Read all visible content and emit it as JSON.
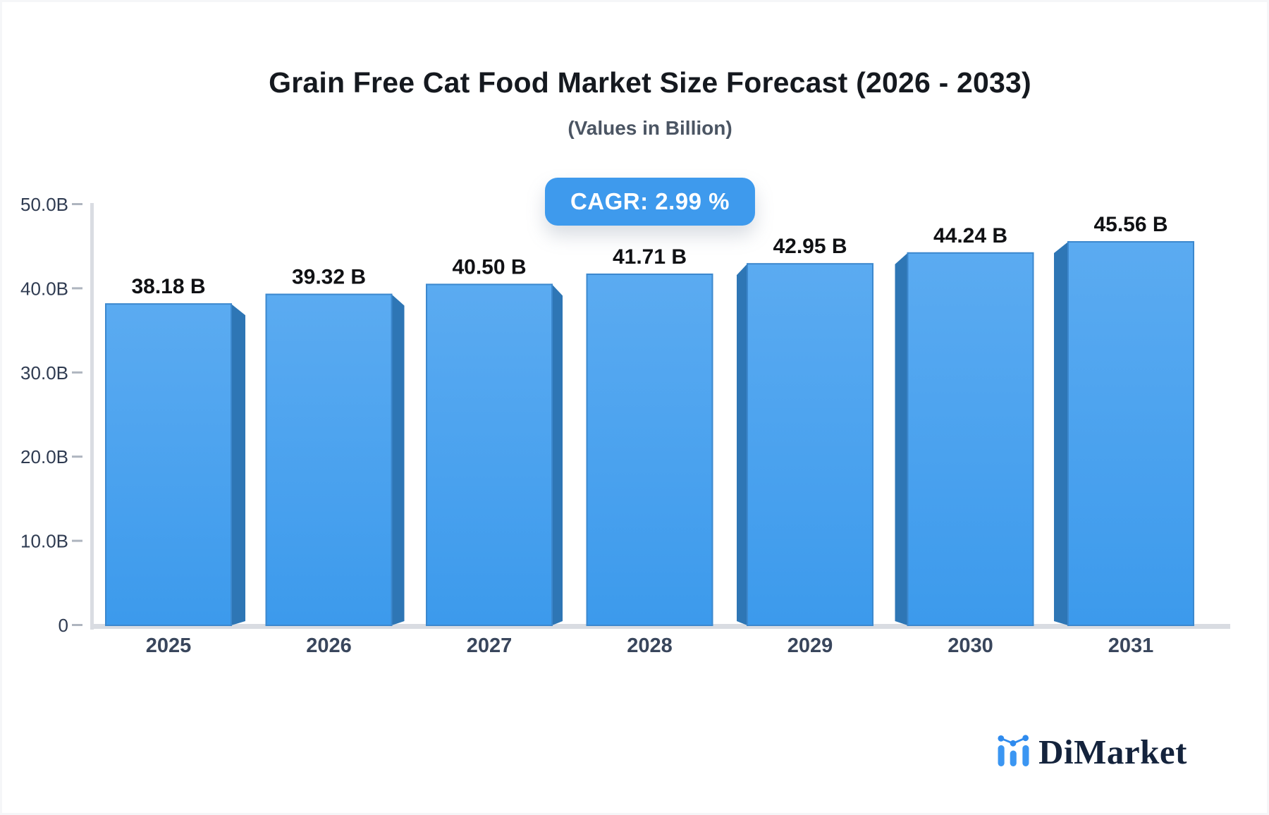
{
  "chart_data": {
    "type": "bar",
    "style": "3d-perspective-bars",
    "title": "Grain Free Cat Food Market Size Forecast (2026 - 2033)",
    "subtitle": "(Values in Billion)",
    "annotation": "CAGR: 2.99 %",
    "categories": [
      "2025",
      "2026",
      "2027",
      "2028",
      "2029",
      "2030",
      "2031"
    ],
    "values": [
      38.18,
      39.32,
      40.5,
      41.71,
      42.95,
      44.24,
      45.56
    ],
    "bar_labels": [
      "38.18 B",
      "39.32 B",
      "40.50 B",
      "41.71 B",
      "42.95 B",
      "44.24 B",
      "45.56 B"
    ],
    "xlabel": "",
    "ylabel": "",
    "ylim": [
      0,
      50
    ],
    "ytick_values": [
      0,
      10,
      20,
      30,
      40,
      50
    ],
    "ytick_labels": [
      "0",
      "10.0B",
      "20.0B",
      "30.0B",
      "40.0B",
      "50.0B"
    ],
    "grid": false,
    "legend": false
  },
  "colors": {
    "bar_face_top": "#5babf1",
    "bar_face_bottom": "#3c9aec",
    "bar_edge": "#3c88ce",
    "bar_side": "#2e76b5",
    "badge_bg": "#3e9aed",
    "axis": "#d9dce2",
    "tick_dash": "#aeb5bf",
    "title_text": "#15191f",
    "subtitle_text": "#4b5563",
    "brand_navy": "#14233c",
    "logo_blue": "#3b96f2",
    "logo_dot_blue": "#2f8bee"
  },
  "logo": {
    "brand": "DiMarket"
  }
}
